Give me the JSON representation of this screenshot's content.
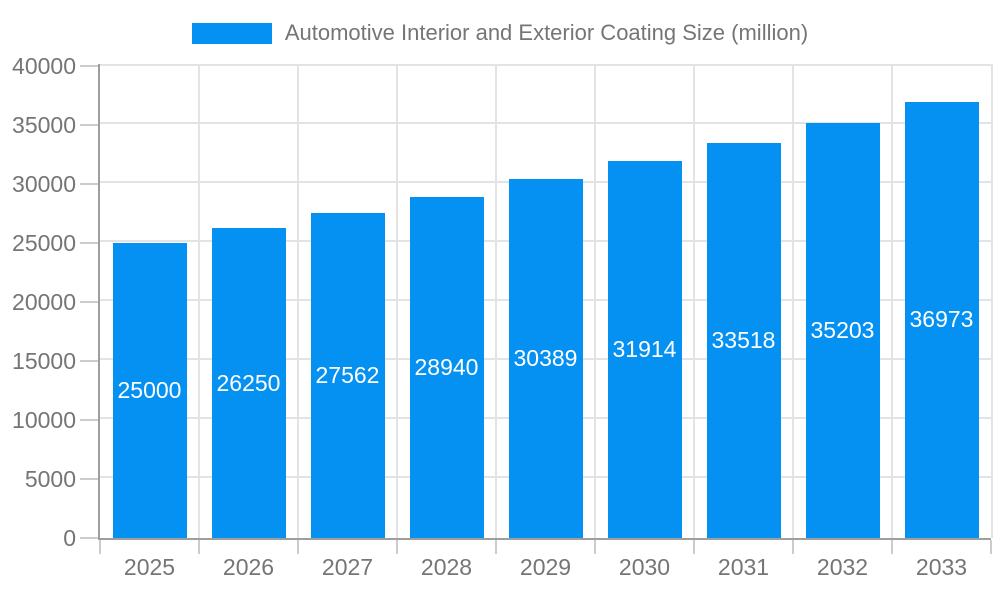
{
  "legend": {
    "label": "Automotive Interior and Exterior Coating Size (million)"
  },
  "colors": {
    "bar": "#0591F2",
    "axis_text": "#757575",
    "gridline": "#E3E3E3",
    "axis_line": "#9E9E9E",
    "tick": "#CCCCCC",
    "bar_label_text": "#FFFFFF",
    "background": "#FFFFFF"
  },
  "chart_data": {
    "type": "bar",
    "title": "Automotive Interior and Exterior Coating Size (million)",
    "categories": [
      "2025",
      "2026",
      "2027",
      "2028",
      "2029",
      "2030",
      "2031",
      "2032",
      "2033"
    ],
    "series": [
      {
        "name": "Automotive Interior and Exterior Coating Size (million)",
        "values": [
          25000,
          26250,
          27562,
          28940,
          30389,
          31914,
          33518,
          35203,
          36973
        ]
      }
    ],
    "xlabel": "",
    "ylabel": "",
    "ylim": [
      0,
      40000
    ],
    "yticks": [
      0,
      5000,
      10000,
      15000,
      20000,
      25000,
      30000,
      35000,
      40000
    ],
    "grid": true,
    "vertical_gridlines": true,
    "legend_position": "top",
    "bar_label_position": "inside-center"
  }
}
